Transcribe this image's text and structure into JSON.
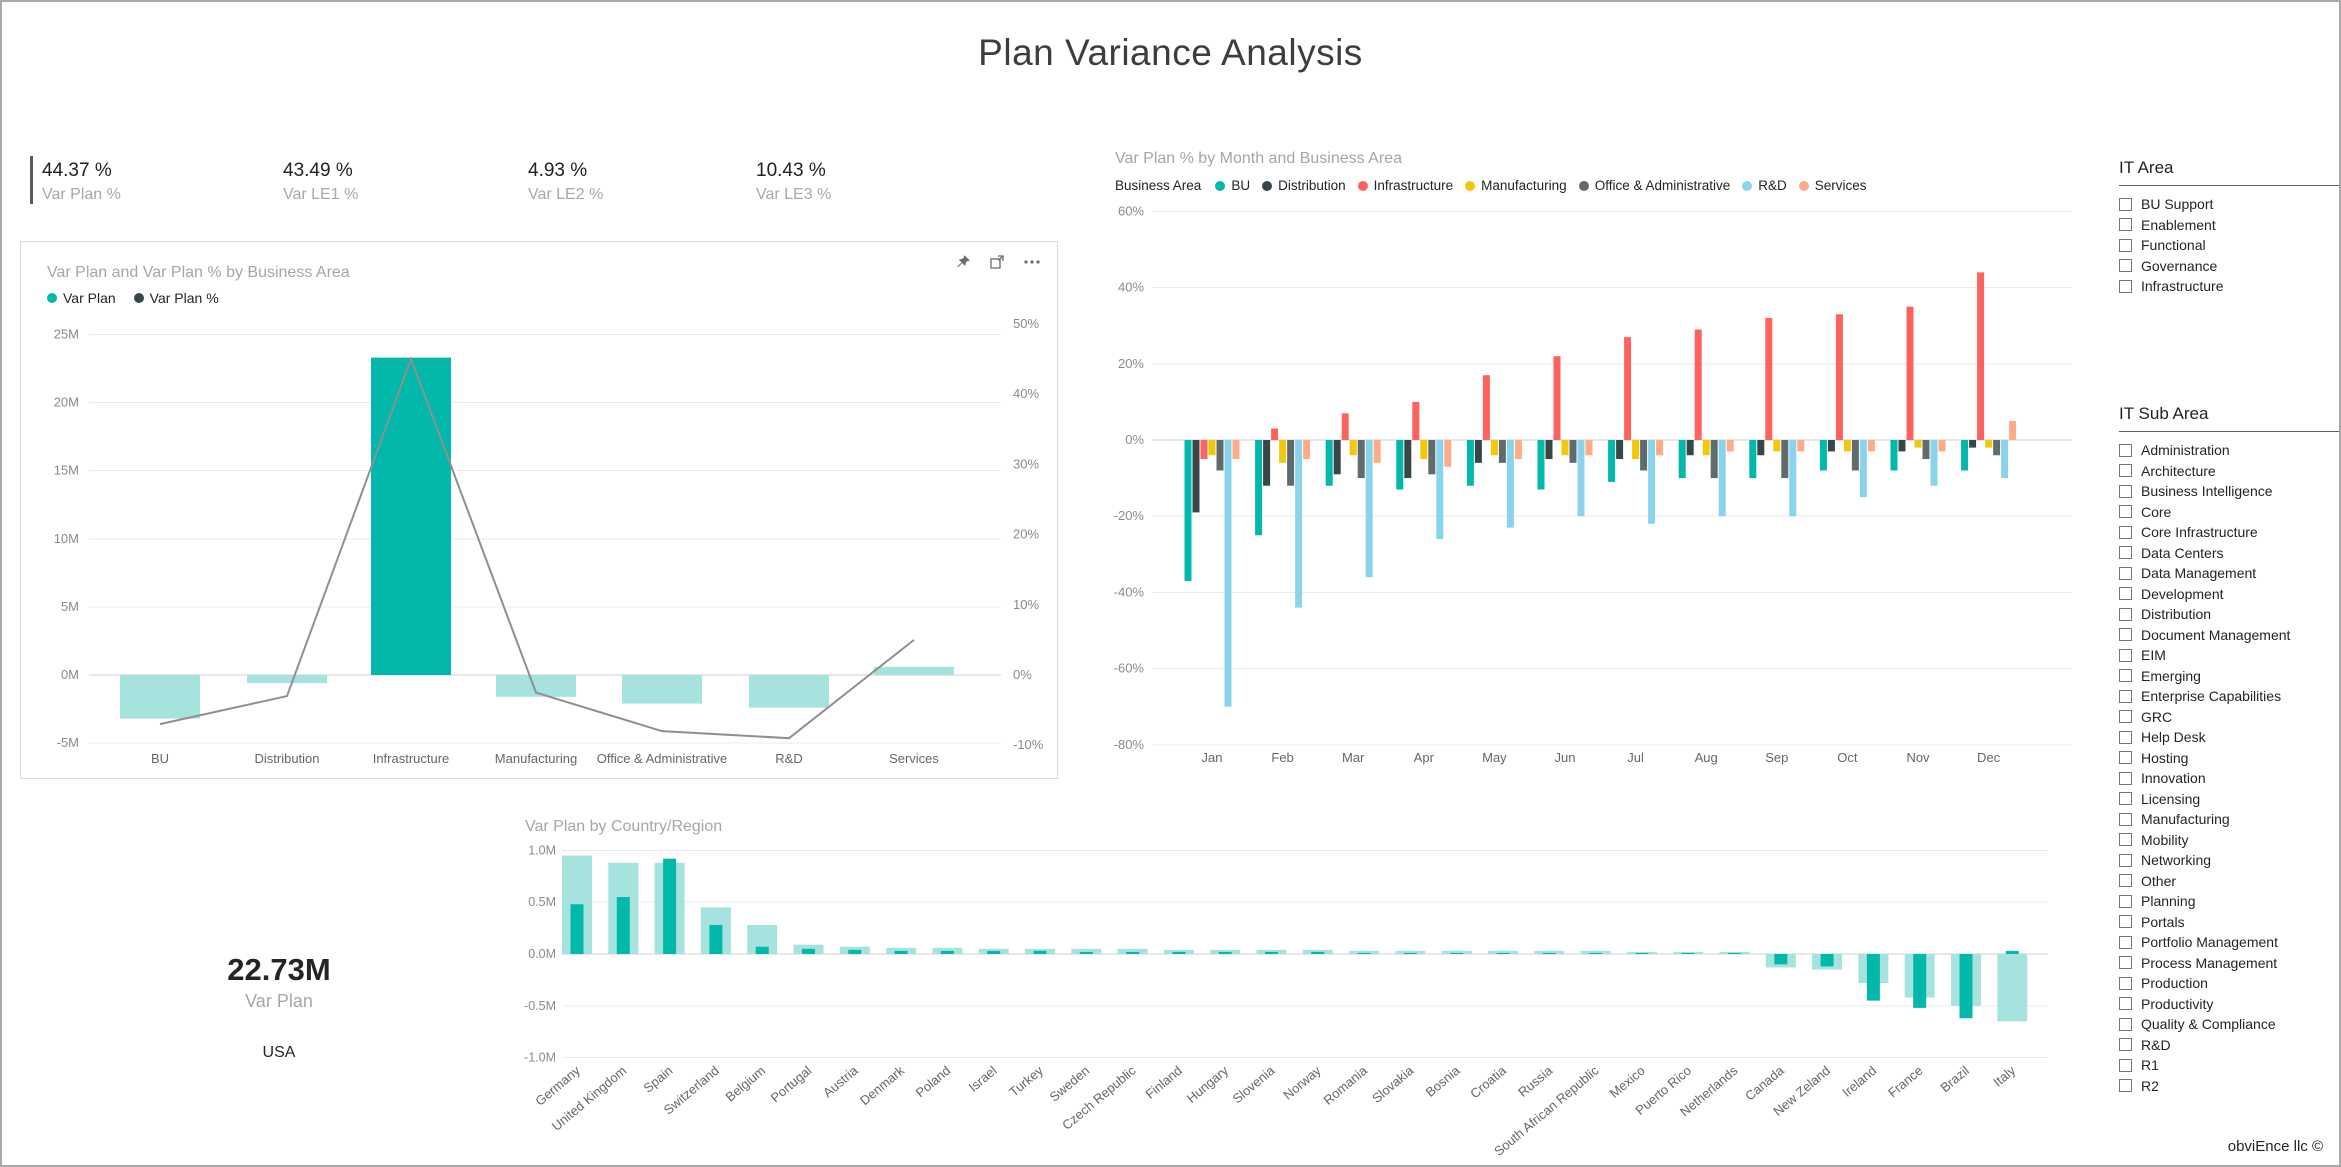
{
  "page": {
    "title": "Plan Variance Analysis",
    "footer": "obviEnce llc ©"
  },
  "colors": {
    "teal": "#01B8AA",
    "light_teal": "#A6E3DE",
    "dark_slate": "#374649",
    "red": "#FD625E",
    "yellow": "#F2C80F",
    "gray": "#5F6B6D",
    "light_blue": "#8AD4EB",
    "peach": "#FDAB89",
    "line_gray": "#8f8f8f"
  },
  "kpis": [
    {
      "value": "44.37 %",
      "label": "Var Plan %"
    },
    {
      "value": "43.49 %",
      "label": "Var LE1 %"
    },
    {
      "value": "4.93 %",
      "label": "Var LE2 %"
    },
    {
      "value": "10.43 %",
      "label": "Var LE3 %"
    }
  ],
  "big_kpi": {
    "value": "22.73M",
    "label": "Var Plan",
    "sub": "USA"
  },
  "slicers": [
    {
      "title": "IT Area",
      "items": [
        "BU Support",
        "Enablement",
        "Functional",
        "Governance",
        "Infrastructure"
      ]
    },
    {
      "title": "IT Sub Area",
      "items": [
        "Administration",
        "Architecture",
        "Business Intelligence",
        "Core",
        "Core Infrastructure",
        "Data Centers",
        "Data Management",
        "Development",
        "Distribution",
        "Document Management",
        "EIM",
        "Emerging",
        "Enterprise Capabilities",
        "GRC",
        "Help Desk",
        "Hosting",
        "Innovation",
        "Licensing",
        "Manufacturing",
        "Mobility",
        "Networking",
        "Other",
        "Planning",
        "Portals",
        "Portfolio Management",
        "Process Management",
        "Production",
        "Productivity",
        "Quality & Compliance",
        "R&D",
        "R1",
        "R2"
      ]
    }
  ],
  "chart_data": [
    {
      "type": "combo-bar-line",
      "title": "Var Plan and Var Plan % by Business Area",
      "legend": [
        {
          "label": "Var Plan",
          "color": "#01B8AA"
        },
        {
          "label": "Var Plan %",
          "color": "#374649"
        }
      ],
      "categories": [
        "BU",
        "Distribution",
        "Infrastructure",
        "Manufacturing",
        "Office & Administrative",
        "R&D",
        "Services"
      ],
      "bar_values_M": [
        -3.2,
        -0.6,
        23.3,
        -1.6,
        -2.1,
        -2.4,
        0.6
      ],
      "bar_colors": [
        "#A6E3DE",
        "#A6E3DE",
        "#01B8AA",
        "#A6E3DE",
        "#A6E3DE",
        "#A6E3DE",
        "#A6E3DE"
      ],
      "line_values_pct": [
        -7,
        -3,
        45,
        -2.5,
        -8,
        -9,
        5
      ],
      "y_left": {
        "tick_values": [
          25,
          20,
          15,
          10,
          5,
          0,
          -5
        ],
        "unit": "M",
        "min": -5,
        "max": 25
      },
      "y_right": {
        "tick_values": [
          50,
          40,
          30,
          20,
          10,
          0,
          -10
        ],
        "unit": "%",
        "min": -10,
        "max": 50
      },
      "grid": true,
      "legend_position": "top-left"
    },
    {
      "type": "bar",
      "title": "Var Plan % by Month and Business Area",
      "legend_title": "Business Area",
      "categories": [
        "Jan",
        "Feb",
        "Mar",
        "Apr",
        "May",
        "Jun",
        "Jul",
        "Aug",
        "Sep",
        "Oct",
        "Nov",
        "Dec"
      ],
      "series": [
        {
          "name": "BU",
          "color": "#01B8AA",
          "values": [
            -37,
            -25,
            -12,
            -13,
            -12,
            -13,
            -11,
            -10,
            -10,
            -8,
            -8,
            -8
          ]
        },
        {
          "name": "Distribution",
          "color": "#374649",
          "values": [
            -19,
            -12,
            -9,
            -10,
            -6,
            -5,
            -5,
            -4,
            -4,
            -3,
            -3,
            -2
          ]
        },
        {
          "name": "Infrastructure",
          "color": "#FD625E",
          "values": [
            -5,
            3,
            7,
            10,
            17,
            22,
            27,
            29,
            32,
            33,
            35,
            44
          ]
        },
        {
          "name": "Manufacturing",
          "color": "#F2C80F",
          "values": [
            -4,
            -6,
            -4,
            -5,
            -4,
            -4,
            -5,
            -4,
            -3,
            -3,
            -2,
            -2
          ]
        },
        {
          "name": "Office & Administrative",
          "color": "#5F6B6D",
          "values": [
            -8,
            -12,
            -10,
            -9,
            -6,
            -6,
            -8,
            -10,
            -10,
            -8,
            -5,
            -4
          ]
        },
        {
          "name": "R&D",
          "color": "#8AD4EB",
          "values": [
            -70,
            -44,
            -36,
            -26,
            -23,
            -20,
            -22,
            -20,
            -20,
            -15,
            -12,
            -10
          ]
        },
        {
          "name": "Services",
          "color": "#FDAB89",
          "values": [
            -5,
            -5,
            -6,
            -7,
            -5,
            -4,
            -4,
            -3,
            -3,
            -3,
            -3,
            5
          ]
        }
      ],
      "ylim": [
        -80,
        60
      ],
      "yticks": [
        60,
        40,
        20,
        0,
        -20,
        -40,
        -60,
        -80
      ],
      "unit": "%",
      "grid": true,
      "legend_position": "top-left"
    },
    {
      "type": "bar",
      "title": "Var Plan by Country/Region",
      "categories": [
        "Germany",
        "United Kingdom",
        "Spain",
        "Switzerland",
        "Belgium",
        "Portugal",
        "Austria",
        "Denmark",
        "Poland",
        "Israel",
        "Turkey",
        "Sweden",
        "Czech Republic",
        "Finland",
        "Hungary",
        "Slovenia",
        "Norway",
        "Romania",
        "Slovakia",
        "Bosnia",
        "Croatia",
        "Russia",
        "South African Republic",
        "Mexico",
        "Puerto Rico",
        "Netherlands",
        "Canada",
        "New Zeland",
        "Ireland",
        "France",
        "Brazil",
        "Italy"
      ],
      "series": [
        {
          "id": "light-teal-wide",
          "color": "#A6E3DE",
          "bar_width": "wide",
          "values": [
            0.95,
            0.88,
            0.88,
            0.45,
            0.28,
            0.09,
            0.07,
            0.06,
            0.06,
            0.05,
            0.05,
            0.05,
            0.05,
            0.04,
            0.04,
            0.04,
            0.04,
            0.03,
            0.03,
            0.03,
            0.03,
            0.03,
            0.03,
            0.02,
            0.02,
            0.02,
            -0.13,
            -0.15,
            -0.28,
            -0.42,
            -0.5,
            -0.65
          ]
        },
        {
          "id": "dark-teal-narrow",
          "color": "#01B8AA",
          "bar_width": "narrow",
          "values": [
            0.48,
            0.55,
            0.92,
            0.28,
            0.07,
            0.05,
            0.04,
            0.03,
            0.03,
            0.03,
            0.03,
            0.02,
            0.02,
            0.02,
            0.02,
            0.02,
            0.02,
            0.01,
            0.01,
            0.01,
            0.01,
            0.01,
            0.01,
            0.01,
            0.01,
            0.01,
            -0.1,
            -0.12,
            -0.45,
            -0.52,
            -0.62,
            0.03
          ]
        }
      ],
      "ylim": [
        -1.0,
        1.0
      ],
      "yticks": [
        1.0,
        0.5,
        0.0,
        -0.5,
        -1.0
      ],
      "unit": "M",
      "grid": true,
      "xlabel_rotation": -40
    }
  ]
}
